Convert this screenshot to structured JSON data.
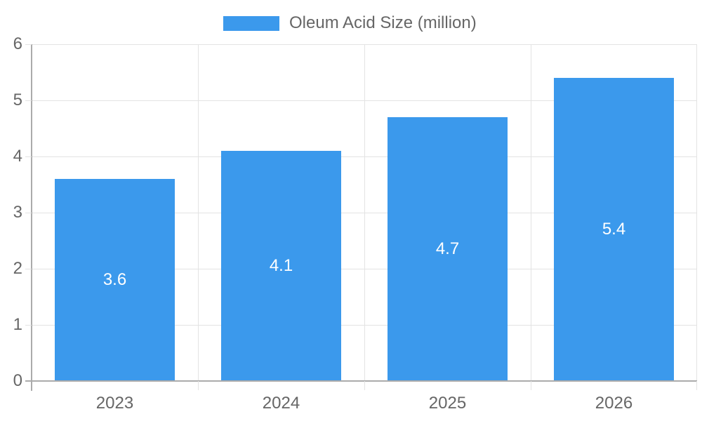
{
  "chart_data": {
    "type": "bar",
    "categories": [
      "2023",
      "2024",
      "2025",
      "2026"
    ],
    "series": [
      {
        "name": "Oleum Acid Size (million)",
        "values": [
          3.6,
          4.1,
          4.7,
          5.4
        ]
      }
    ],
    "bar_value_labels": [
      "3.6",
      "4.1",
      "4.7",
      "5.4"
    ],
    "title": "",
    "xlabel": "",
    "ylabel": "",
    "ylim": [
      0,
      6
    ],
    "yticks": [
      0,
      1,
      2,
      3,
      4,
      5,
      6
    ],
    "grid": true,
    "legend": {
      "label": "Oleum Acid Size (million)",
      "position": "top"
    },
    "colors": {
      "bar": "#3b99ec",
      "grid_line": "#e3e3e3",
      "axis_line": "#ababab",
      "tick_label": "#666666",
      "bar_label": "#ffffff",
      "background": "#ffffff"
    }
  }
}
